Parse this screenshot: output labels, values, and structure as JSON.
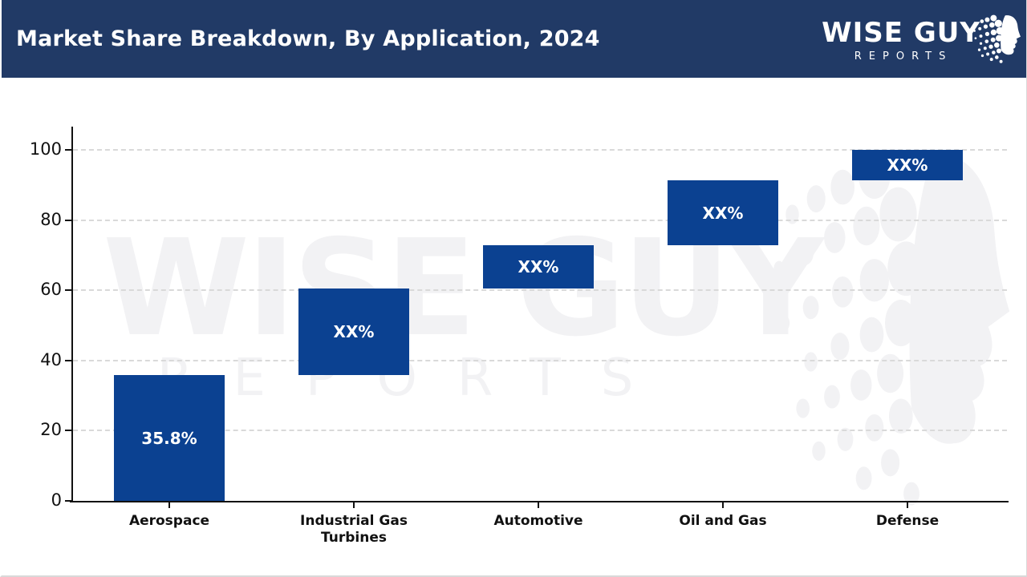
{
  "header": {
    "title": "Market Share Breakdown, By Application, 2024",
    "logo": {
      "line1": "WISE GUY",
      "line2": "REPORTS",
      "icon": "dotted-face-profile-icon"
    }
  },
  "watermark": {
    "line1": "WISE GUY",
    "line2": "REPORTS"
  },
  "chart_data": {
    "type": "bar",
    "variant": "waterfall",
    "title": "Market Share Breakdown, By Application, 2024",
    "categories": [
      "Aerospace",
      "Industrial Gas Turbines",
      "Automotive",
      "Oil and Gas",
      "Defense"
    ],
    "series": [
      {
        "name": "Market Share %",
        "segments": [
          {
            "category": "Aerospace",
            "start": 0,
            "end": 35.8,
            "label": "35.8%"
          },
          {
            "category": "Industrial Gas Turbines",
            "start": 35.8,
            "end": 60.5,
            "label": "XX%"
          },
          {
            "category": "Automotive",
            "start": 60.5,
            "end": 72.8,
            "label": "XX%"
          },
          {
            "category": "Oil and Gas",
            "start": 72.8,
            "end": 91.3,
            "label": "XX%"
          },
          {
            "category": "Defense",
            "start": 91.3,
            "end": 100,
            "label": "XX%"
          }
        ]
      }
    ],
    "xlabel": "",
    "ylabel": "",
    "ylim": [
      0,
      105
    ],
    "yticks": [
      0,
      20,
      40,
      60,
      80,
      100
    ],
    "grid": "horizontal dashed",
    "legend": "none",
    "bar_color": "#0b4191",
    "bar_label_color": "#ffffff"
  },
  "colors": {
    "header_bg": "#213a66",
    "bar": "#0b4191",
    "axis": "#111111",
    "grid": "#d9d9d9",
    "watermark": "#f2f2f4",
    "title_text": "#ffffff"
  }
}
